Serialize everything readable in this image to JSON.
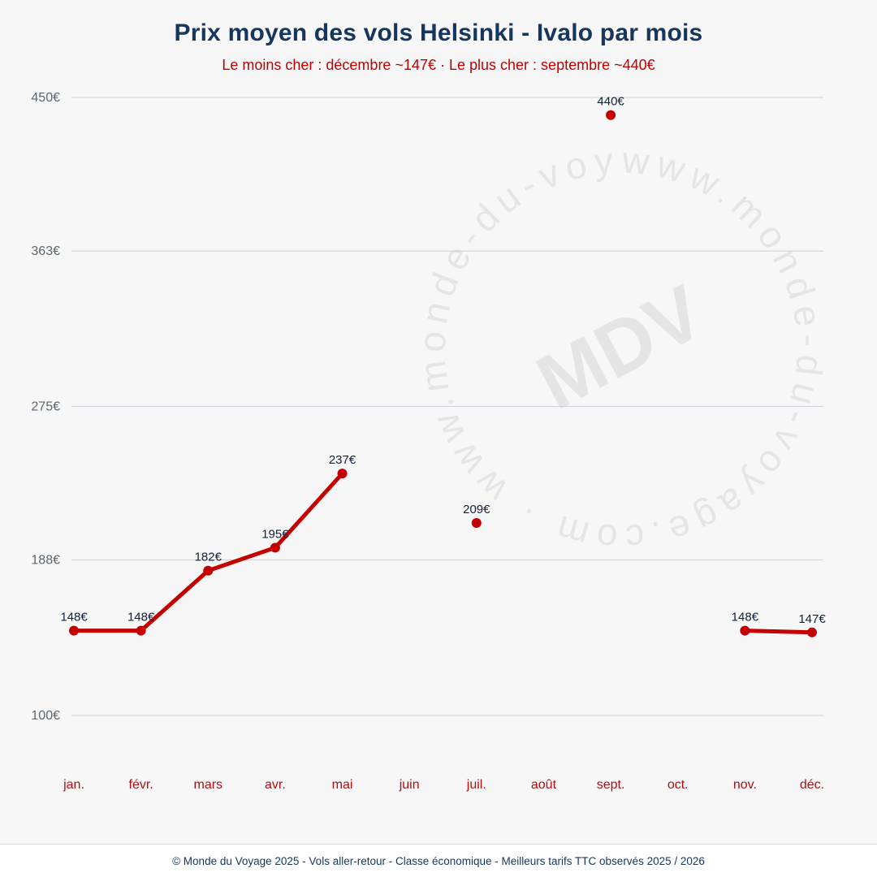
{
  "page": {
    "title": "Prix moyen des vols Helsinki - Ivalo par mois",
    "subtitle": "Le moins cher : décembre ~147€ · Le plus cher : septembre ~440€",
    "footer": "© Monde du Voyage 2025 - Vols aller-retour - Classe économique - Meilleurs tarifs TTC observés 2025 / 2026",
    "watermark_circle_text": "www.monde-du-voyage.com",
    "watermark_center_text": "MDV"
  },
  "colors": {
    "background": "#f7f7f7",
    "title": "#17365d",
    "subtitle": "#c00000",
    "series": "#c40000",
    "grid": "#c9d2da",
    "axis_label": "#5b6670",
    "month_label": "#b00e14",
    "point_label": "#101f38",
    "footer_text": "#17365d",
    "watermark": "#e2e2e2"
  },
  "chart_data": {
    "type": "line",
    "title": "Prix moyen des vols Helsinki - Ivalo par mois",
    "categories": [
      "jan.",
      "févr.",
      "mars",
      "avr.",
      "mai",
      "juin",
      "juil.",
      "août",
      "sept.",
      "oct.",
      "nov.",
      "déc."
    ],
    "values": [
      148,
      148,
      182,
      195,
      237,
      null,
      209,
      null,
      440,
      null,
      148,
      147
    ],
    "point_labels": [
      "148€",
      "148€",
      "182€",
      "195€",
      "237€",
      "",
      "209€",
      "",
      "440€",
      "",
      "148€",
      "147€"
    ],
    "y_ticks": [
      100,
      188,
      275,
      363,
      450
    ],
    "y_tick_labels": [
      "100€",
      "188€",
      "275€",
      "363€",
      "450€"
    ],
    "ylim": [
      100,
      450
    ],
    "grid": true,
    "legend": "none",
    "xlabel": "",
    "ylabel": ""
  }
}
